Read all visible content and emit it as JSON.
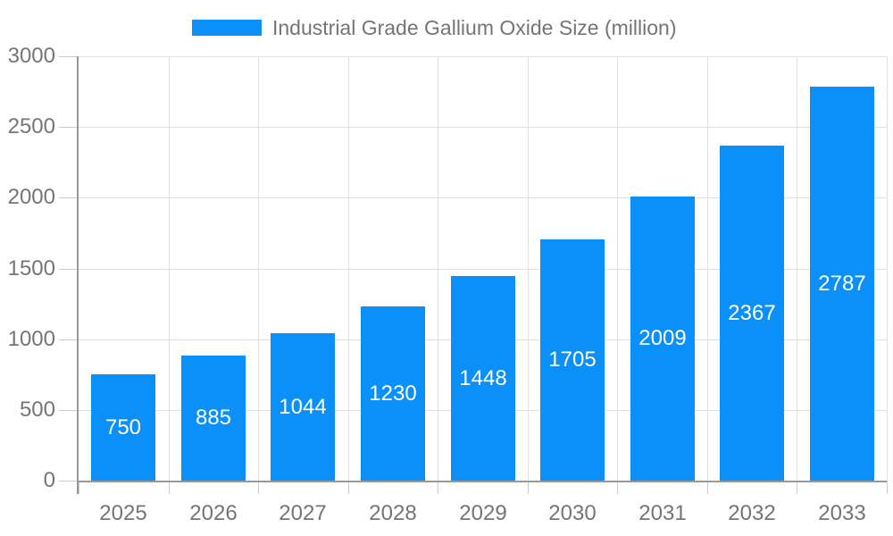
{
  "legend": {
    "label": "Industrial Grade Gallium Oxide Size (million)"
  },
  "chart_data": {
    "type": "bar",
    "title": "Industrial Grade Gallium Oxide Size (million)",
    "categories": [
      "2025",
      "2026",
      "2027",
      "2028",
      "2029",
      "2030",
      "2031",
      "2032",
      "2033"
    ],
    "values": [
      750,
      885,
      1044,
      1230,
      1448,
      1705,
      2009,
      2367,
      2787
    ],
    "xlabel": "",
    "ylabel": "",
    "ylim": [
      0,
      3000
    ],
    "yticks": [
      0,
      500,
      1000,
      1500,
      2000,
      2500,
      3000
    ],
    "grid": true,
    "legend_position": "top-center",
    "value_label_position": "inside-center"
  },
  "colors": {
    "bar": "#0a90f8",
    "axis": "#999999",
    "gridline": "#e0e0e0",
    "tick": "#cccccc",
    "label_text": "#757575",
    "value_text": "#ffffff",
    "background": "#ffffff"
  }
}
